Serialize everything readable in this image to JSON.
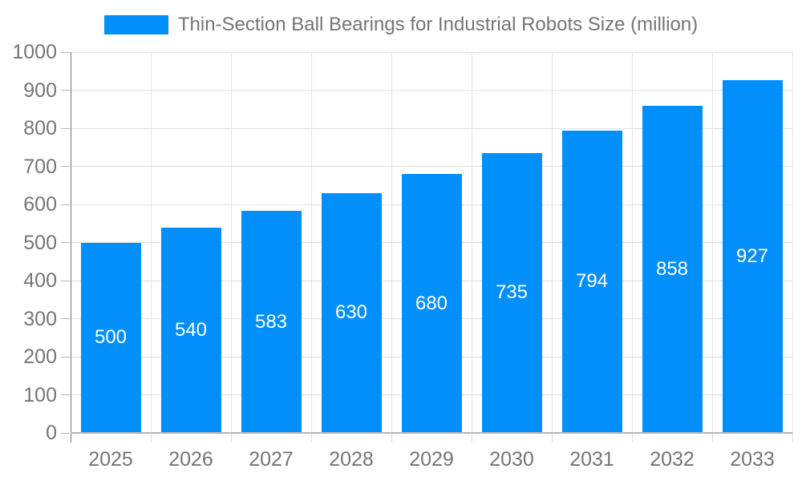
{
  "chart_data": {
    "type": "bar",
    "title": "Thin-Section Ball Bearings for Industrial Robots Size (million)",
    "categories": [
      "2025",
      "2026",
      "2027",
      "2028",
      "2029",
      "2030",
      "2031",
      "2032",
      "2033"
    ],
    "values": [
      500,
      540,
      583,
      630,
      680,
      735,
      794,
      858,
      927
    ],
    "xlabel": "",
    "ylabel": "",
    "ylim": [
      0,
      1000
    ],
    "ytick_step": 100,
    "grid": true,
    "legend_position": "top",
    "bar_color": "#008FFB",
    "data_label_color": "#ffffff",
    "axis_label_color": "#757575"
  },
  "colors": {
    "accent_blue": "#008FFB",
    "label_gray": "#757575",
    "gridline": "#e0e0e0",
    "x_axis_line": "#b6b6b6"
  }
}
